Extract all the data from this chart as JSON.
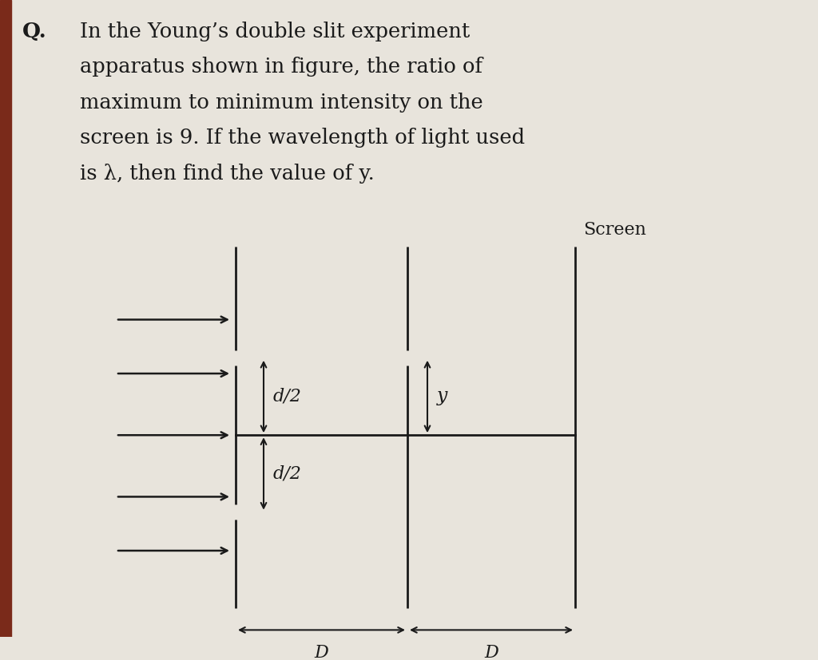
{
  "background_color": "#e8e4dc",
  "text_color": "#1a1a1a",
  "screen_label": "Screen",
  "label_d2_upper": "d/2",
  "label_d2_lower": "d/2",
  "label_y": "y",
  "label_D1": "D",
  "label_D2": "D",
  "fig_width": 10.24,
  "fig_height": 8.27,
  "dpi": 100,
  "border_color": "#7a2a1a",
  "border_width": 0.14,
  "q_label": "Q.",
  "line1": "In the Young’s double slit experiment",
  "line2": "apparatus shown in figure, the ratio of",
  "line3": "maximum to minimum intensity on the",
  "line4": "screen is 9. If the wavelength of light used",
  "line5": "is λ, then find the value of y."
}
